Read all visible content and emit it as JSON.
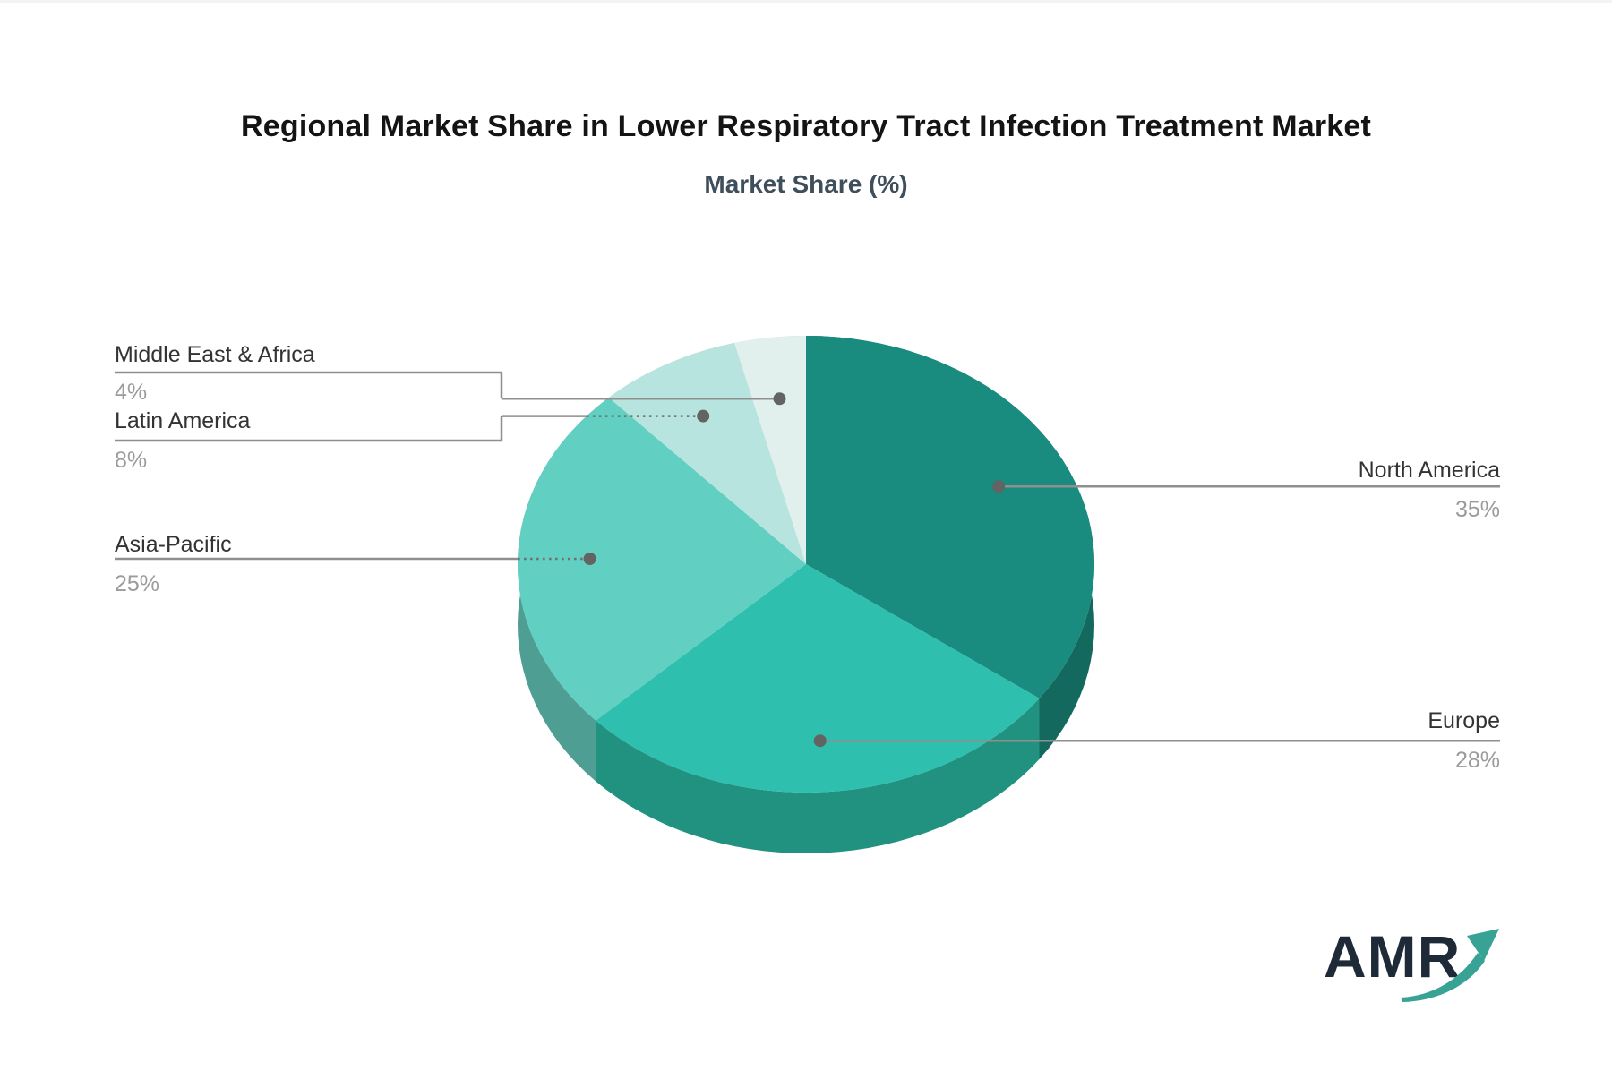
{
  "page": {
    "title": "Regional Market Share in Lower Respiratory Tract Infection Treatment Market",
    "subtitle": "Market Share (%)",
    "background_color": "#ffffff",
    "logo_text": "AMR",
    "logo_text_color": "#1e2a38",
    "logo_arrow_color": "#38a294"
  },
  "chart_data": {
    "type": "pie",
    "effect": "3d",
    "title": "Regional Market Share in Lower Respiratory Tract Infection Treatment Market",
    "subtitle": "Market Share (%)",
    "unit": "%",
    "direction": "clockwise",
    "start_angle_deg": 0,
    "legend": "none",
    "labels": [
      "North America",
      "Europe",
      "Asia-Pacific",
      "Latin America",
      "Middle East & Africa"
    ],
    "values": [
      35,
      28,
      25,
      8,
      4
    ],
    "display_values": [
      "35%",
      "28%",
      "25%",
      "8%",
      "4%"
    ],
    "colors": [
      "#198b7f",
      "#2ebfae",
      "#61cfc2",
      "#b7e4de",
      "#e1efed"
    ],
    "side_colors": [
      "#14695f",
      "#219180",
      "#4f9e94",
      "#8fbcb5",
      "#b8ccc9"
    ],
    "leader_line_color": "#8f8f8f",
    "leader_dot_color": "#636363",
    "label_color": "#333333",
    "value_color": "#9b9b9b"
  }
}
